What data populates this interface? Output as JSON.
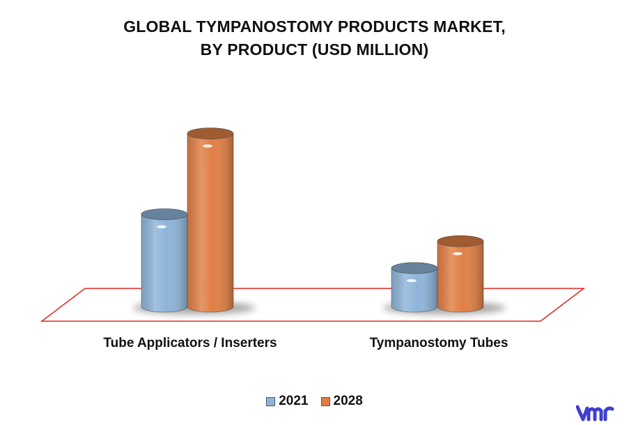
{
  "chart_data": {
    "type": "bar",
    "title_line1": "GLOBAL TYMPANOSTOMY PRODUCTS MARKET,",
    "title_line2": "BY PRODUCT (USD MILLION)",
    "categories": [
      "Tube Applicators / Inserters",
      "Tympanostomy Tubes"
    ],
    "series": [
      {
        "name": "2021",
        "values": [
          120,
          50
        ],
        "color": "#8fb4d9"
      },
      {
        "name": "2028",
        "values": [
          225,
          85
        ],
        "color": "#e07f45"
      }
    ],
    "ylim": [
      0,
      240
    ],
    "grid": false,
    "legend_position": "bottom",
    "floor_color": "#e0261f",
    "style": "3d-cylinder"
  },
  "logo": {
    "icon": "vmr-logo-icon",
    "color": "#3f3fd0"
  }
}
